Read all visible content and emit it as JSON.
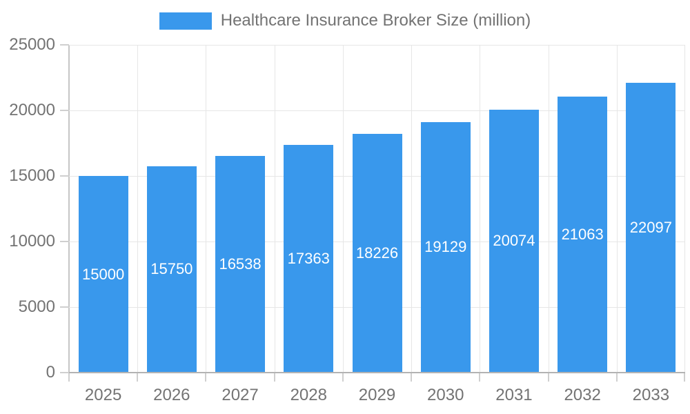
{
  "legend": {
    "label": "Healthcare Insurance Broker Size (million)"
  },
  "chart_data": {
    "type": "bar",
    "title": "",
    "categories": [
      "2025",
      "2026",
      "2027",
      "2028",
      "2029",
      "2030",
      "2031",
      "2032",
      "2033"
    ],
    "values": [
      15000,
      15750,
      16538,
      17363,
      18226,
      19129,
      20074,
      21063,
      22097
    ],
    "series_name": "Healthcare Insurance Broker Size (million)",
    "xlabel": "",
    "ylabel": "",
    "ylim": [
      0,
      25000
    ],
    "yticks": [
      0,
      5000,
      10000,
      15000,
      20000,
      25000
    ],
    "grid": true,
    "legend_position": "top-center",
    "value_labels": "inside-center",
    "colors": {
      "bar": "#3998ec",
      "grid": "#e6e6e6",
      "axis": "#b3b3b3",
      "axis_y": "#c6c6c6",
      "tick": "#cfcfcf",
      "text": "#737373",
      "value_label_text": "#ffffff",
      "background": "#ffffff"
    }
  }
}
